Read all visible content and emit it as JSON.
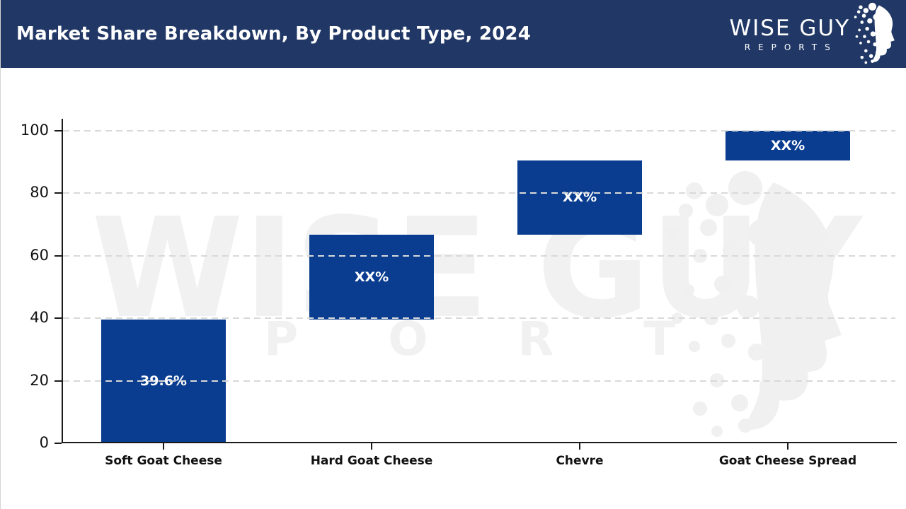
{
  "header": {
    "title": "Market Share Breakdown, By Product Type, 2024",
    "logo_line1": "WISE GUY",
    "logo_line2": "REPORTS",
    "bg_color": "#213866"
  },
  "watermark": {
    "line1": "WISE GUY",
    "line2": "P O R T S"
  },
  "chart_data": {
    "type": "bar",
    "subtype": "waterfall",
    "title": "Market Share Breakdown, By Product Type, 2024",
    "categories": [
      "Soft Goat Cheese",
      "Hard Goat Cheese",
      "Chevre",
      "Goat Cheese Spread"
    ],
    "segments": [
      {
        "category": "Soft Goat Cheese",
        "start": 0,
        "end": 39.6,
        "value": 39.6,
        "label": "39.6%"
      },
      {
        "category": "Hard Goat Cheese",
        "start": 39.6,
        "end": 66.7,
        "value": 27.1,
        "label": "XX%"
      },
      {
        "category": "Chevre",
        "start": 66.7,
        "end": 90.6,
        "value": 23.9,
        "label": "XX%"
      },
      {
        "category": "Goat Cheese Spread",
        "start": 90.6,
        "end": 100.0,
        "value": 9.4,
        "label": "XX%"
      }
    ],
    "y_ticks": [
      0,
      20,
      40,
      60,
      80,
      100
    ],
    "ylim": [
      0,
      100
    ],
    "xlabel": "",
    "ylabel": "",
    "legend": null,
    "grid": "horizontal-dashed",
    "bar_color": "#0a3d90",
    "bar_label_color": "#ffffff",
    "axis_color": "#1a1a1a",
    "grid_color": "#d9d9d9"
  }
}
